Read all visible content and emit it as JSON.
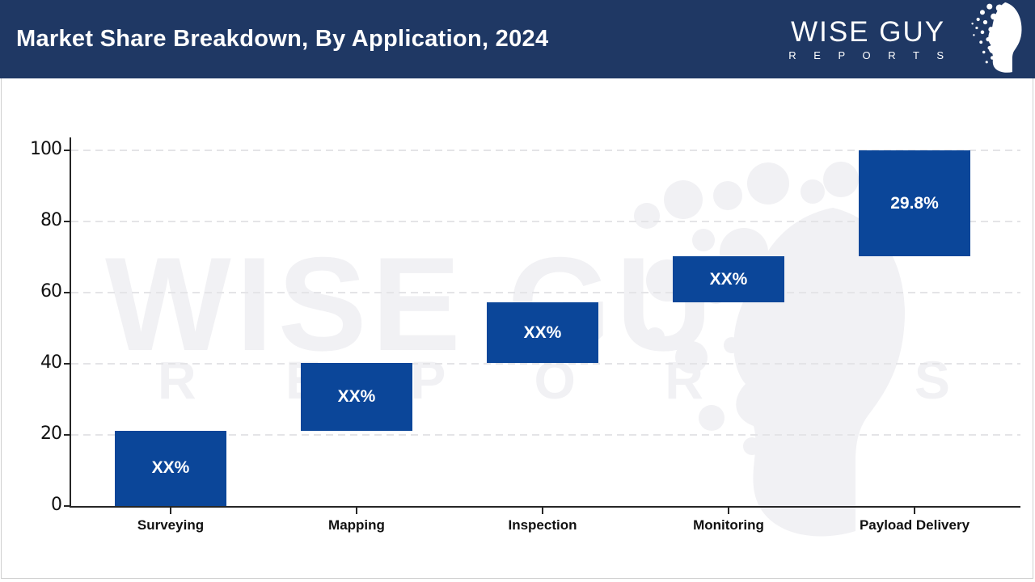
{
  "header": {
    "title": "Market Share Breakdown, By Application, 2024",
    "bg_color": "#1f3864",
    "logo": {
      "line1": "WISE GUY",
      "line2": "R E P O R T S"
    }
  },
  "watermark": {
    "line1": "WISE GUY",
    "line2": "R E P O R T S"
  },
  "chart_data": {
    "type": "bar",
    "subtype": "waterfall",
    "title": "Market Share Breakdown, By Application, 2024",
    "categories": [
      "Surveying",
      "Mapping",
      "Inspection",
      "Monitoring",
      "Payload Delivery"
    ],
    "segments": [
      {
        "category": "Surveying",
        "start": 0,
        "end": 21.2,
        "label": "XX%"
      },
      {
        "category": "Mapping",
        "start": 21.2,
        "end": 40.2,
        "label": "XX%"
      },
      {
        "category": "Inspection",
        "start": 40.2,
        "end": 57.2,
        "label": "XX%"
      },
      {
        "category": "Monitoring",
        "start": 57.2,
        "end": 70.2,
        "label": "XX%"
      },
      {
        "category": "Payload Delivery",
        "start": 70.2,
        "end": 100,
        "label": "29.8%"
      }
    ],
    "ylim": [
      0,
      100
    ],
    "yticks": [
      0,
      20,
      40,
      60,
      80,
      100
    ],
    "xlabel": "",
    "ylabel": "",
    "bar_color": "#0b4699",
    "grid": true,
    "grid_style": "dashed",
    "legend": false
  }
}
